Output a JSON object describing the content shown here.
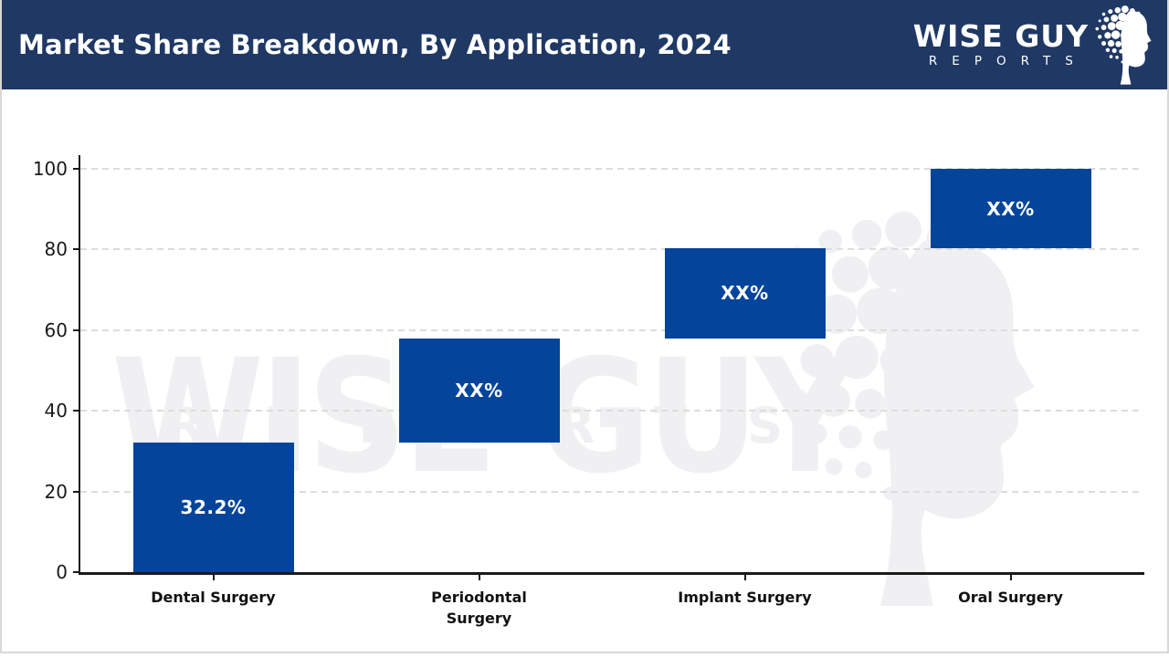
{
  "header": {
    "title": "Market Share Breakdown, By Application, 2024",
    "background_color": "#1f3864",
    "brand": {
      "name": "WISE GUY",
      "subtitle": "REPORTS",
      "icon": "dotted-face-profile-icon"
    }
  },
  "watermark": {
    "line1": "WISE GUY",
    "line2": "REPORTS",
    "icon": "dotted-face-profile-icon",
    "color": "#f0f0f3"
  },
  "chart_data": {
    "type": "bar",
    "variant": "waterfall",
    "title": "Market Share Breakdown, By Application, 2024",
    "categories": [
      "Dental Surgery",
      "Periodontal\nSurgery",
      "Implant Surgery",
      "Oral Surgery"
    ],
    "segments": [
      {
        "category": "Dental Surgery",
        "start": 0,
        "end": 32.2,
        "label": "32.2%"
      },
      {
        "category": "Periodontal Surgery",
        "start": 32.2,
        "end": 58,
        "label": "XX%"
      },
      {
        "category": "Implant Surgery",
        "start": 58,
        "end": 80.3,
        "label": "XX%"
      },
      {
        "category": "Oral Surgery",
        "start": 80.3,
        "end": 100,
        "label": "XX%"
      }
    ],
    "ylim": [
      0,
      100
    ],
    "yticks": [
      0,
      20,
      40,
      60,
      80,
      100
    ],
    "grid": {
      "axis": "y",
      "style": "dashed",
      "color": "#dcdcdc"
    },
    "legend": "none",
    "bar_color": "#05449b",
    "bar_label_color": "#ffffff",
    "axis_color": "#1a1a1a",
    "tick_label_color": "#1a1a1a"
  }
}
